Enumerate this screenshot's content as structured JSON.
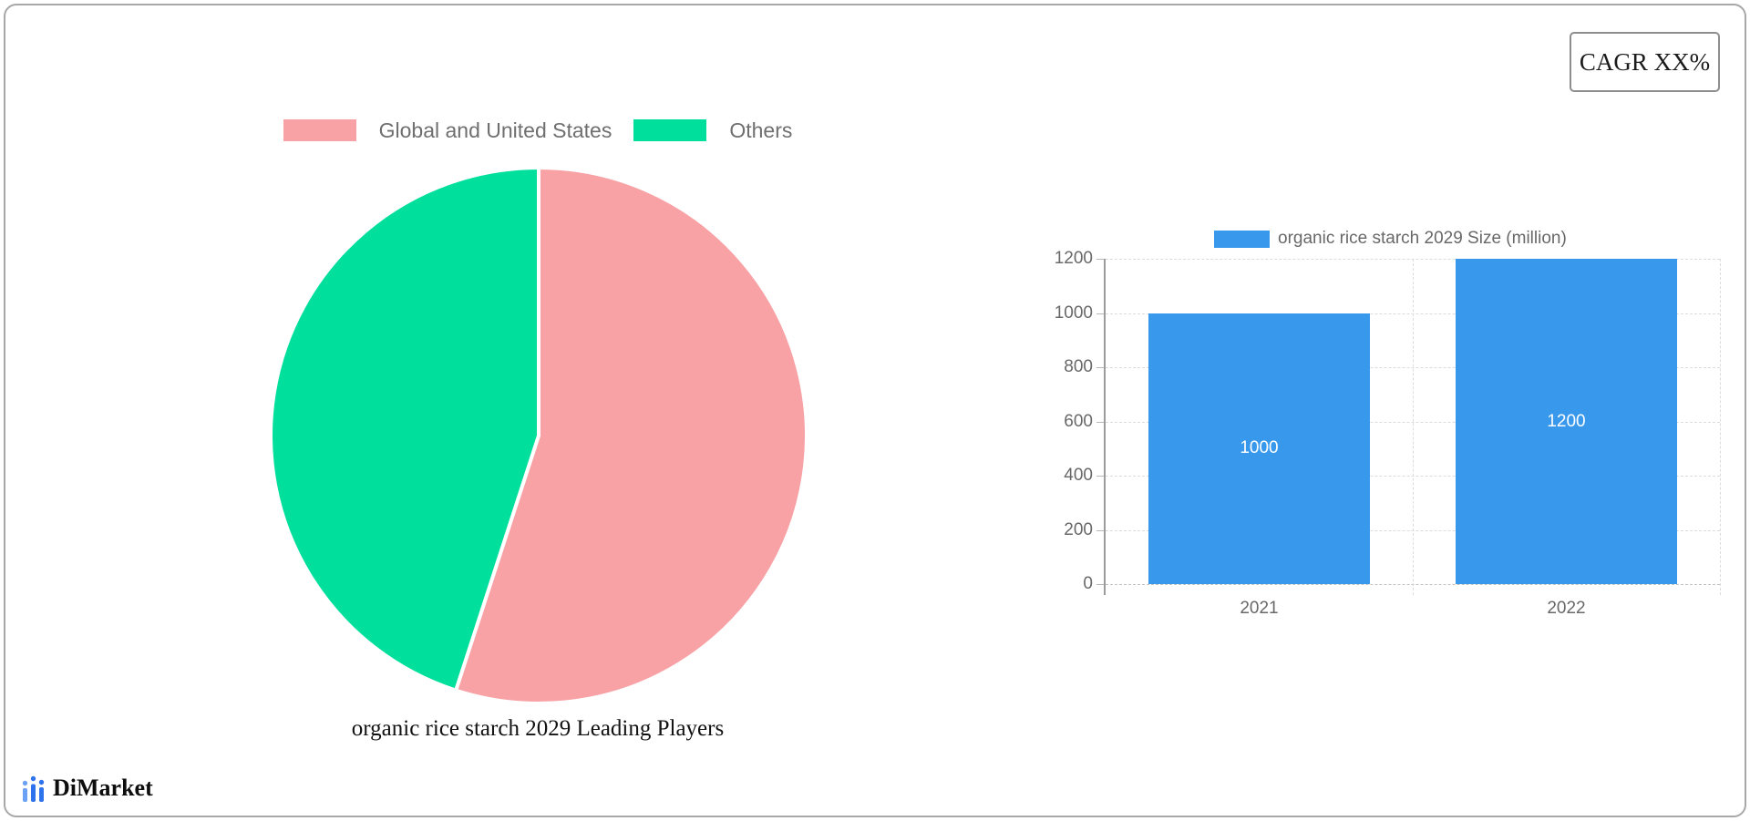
{
  "header": {
    "cagr_badge": "CAGR XX%"
  },
  "footer": {
    "brand": "DiMarket"
  },
  "colors": {
    "pie_pink": "#f8a2a6",
    "pie_green": "#00df9b",
    "bar_blue": "#3898ec",
    "logo_blue": "#2f72ee",
    "logo_blue_light": "#6ba1f6",
    "page_border": "#a8a8a8"
  },
  "icons": {
    "logo_icon": "bar-chart-icon"
  },
  "chart_data": [
    {
      "type": "pie",
      "title": "organic rice starch 2029 Leading Players",
      "labels": [
        "Global and United States",
        "Others"
      ],
      "values": [
        55,
        45
      ],
      "unit": "%",
      "colors": [
        "#f8a2a6",
        "#00df9b"
      ],
      "legend_position": "top",
      "start_angle_deg": 0,
      "direction": "clockwise",
      "slice_border_color": "#ffffff"
    },
    {
      "type": "bar",
      "categories": [
        "2021",
        "2022"
      ],
      "series": [
        {
          "name": "organic rice starch 2029 Size (million)",
          "values": [
            1000,
            1200
          ],
          "color": "#3898ec"
        }
      ],
      "value_labels": [
        "1000",
        "1200"
      ],
      "ylim": [
        0,
        1200
      ],
      "yticks": [
        0,
        200,
        400,
        600,
        800,
        1000,
        1200
      ],
      "grid": true,
      "legend_position": "top"
    }
  ]
}
